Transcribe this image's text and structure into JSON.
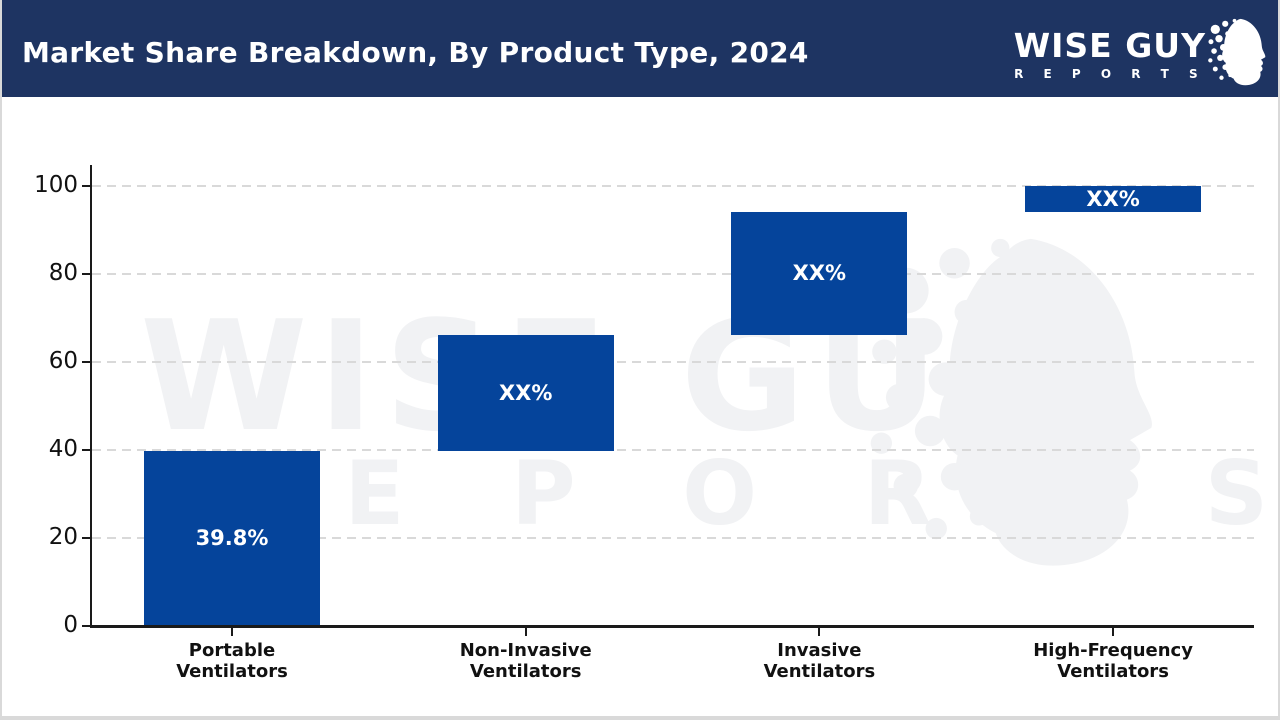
{
  "header": {
    "title": "Market Share Breakdown, By Product Type, 2024",
    "background_color": "#1e3462",
    "logo": {
      "line1": "WISE GUY",
      "line2": "R E P O R T S",
      "face_icon": "dotted-head-profile-icon"
    }
  },
  "watermark": {
    "line1": "WISE GU",
    "line2": "R E P O R T S",
    "face_icon": "dotted-head-profile-icon"
  },
  "chart_data": {
    "type": "bar",
    "subtype": "waterfall",
    "title": "Market Share Breakdown, By Product Type, 2024",
    "categories": [
      "Portable Ventilators",
      "Non-Invasive Ventilators",
      "Invasive Ventilators",
      "High-Frequency Ventilators"
    ],
    "category_label_lines": [
      [
        "Portable",
        "Ventilators"
      ],
      [
        "Non-Invasive",
        "Ventilators"
      ],
      [
        "Invasive",
        "Ventilators"
      ],
      [
        "High-Frequency",
        "Ventilators"
      ]
    ],
    "segments": [
      {
        "category": "Portable Ventilators",
        "start": 0,
        "end": 39.8,
        "label": "39.8%"
      },
      {
        "category": "Non-Invasive Ventilators",
        "start": 39.8,
        "end": 66.2,
        "label": "XX%"
      },
      {
        "category": "Invasive Ventilators",
        "start": 66.2,
        "end": 94.1,
        "label": "XX%"
      },
      {
        "category": "High-Frequency Ventilators",
        "start": 94.1,
        "end": 100,
        "label": "XX%"
      }
    ],
    "xlabel": "",
    "ylabel": "",
    "ylim": [
      0,
      100
    ],
    "yticks": [
      0,
      20,
      40,
      60,
      80,
      100
    ],
    "grid": "horizontal dashed",
    "gridline_color": "#d9d9d9",
    "bar_color": "#05449b",
    "bar_label_color": "#ffffff",
    "legend": "none"
  }
}
